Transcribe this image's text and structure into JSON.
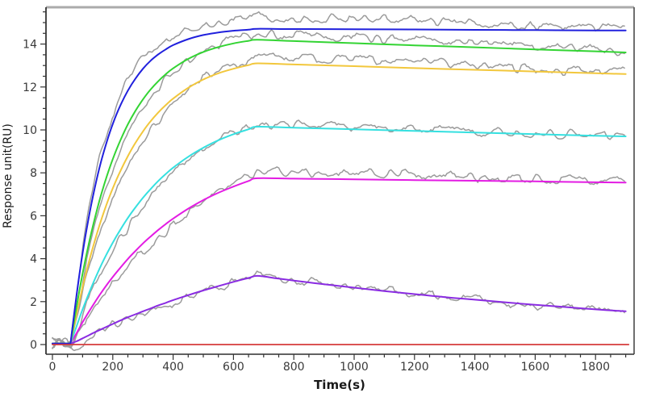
{
  "chart_data": {
    "type": "line",
    "title": "",
    "xlabel": "Time(s)",
    "ylabel": "Response unit(RU)",
    "xlim": [
      0,
      1928
    ],
    "ylim": [
      -0.45,
      15.7
    ],
    "grid": false,
    "legend": "none",
    "x_tick_labels": [
      "0",
      "200",
      "400",
      "600",
      "800",
      "1000",
      "1200",
      "1400",
      "1600",
      "1800"
    ],
    "x_major_tick_interval": 200,
    "x_minor_tick_interval": 50,
    "y_tick_labels": [
      "0",
      "2",
      "4",
      "6",
      "8",
      "10",
      "12",
      "14"
    ],
    "y_major_tick_interval": 2,
    "y_minor_tick_interval": 0.5,
    "phases": {
      "baseline_end_s": 60,
      "dissociation_start_s": 680,
      "end_s": 1900
    },
    "series": [
      {
        "name": "fit-curve-1-highest",
        "role": "fit",
        "color": "#2020dd",
        "points": [
          [
            0,
            0.05
          ],
          [
            60,
            0.05
          ],
          [
            80,
            2.31
          ],
          [
            100,
            4.26
          ],
          [
            120,
            5.9
          ],
          [
            140,
            7.29
          ],
          [
            160,
            8.46
          ],
          [
            180,
            9.44
          ],
          [
            200,
            10.28
          ],
          [
            225,
            11.14
          ],
          [
            250,
            11.83
          ],
          [
            275,
            12.39
          ],
          [
            300,
            12.85
          ],
          [
            325,
            13.22
          ],
          [
            350,
            13.51
          ],
          [
            375,
            13.75
          ],
          [
            400,
            13.95
          ],
          [
            450,
            14.23
          ],
          [
            500,
            14.42
          ],
          [
            550,
            14.54
          ],
          [
            600,
            14.62
          ],
          [
            650,
            14.67
          ],
          [
            680,
            14.71
          ],
          [
            800,
            14.7
          ],
          [
            1000,
            14.69
          ],
          [
            1200,
            14.68
          ],
          [
            1400,
            14.66
          ],
          [
            1600,
            14.65
          ],
          [
            1800,
            14.63
          ],
          [
            1900,
            14.63
          ]
        ]
      },
      {
        "name": "fit-curve-2",
        "role": "fit",
        "color": "#33d433",
        "points": [
          [
            0,
            0.05
          ],
          [
            60,
            0.05
          ],
          [
            80,
            1.76
          ],
          [
            100,
            3.31
          ],
          [
            120,
            4.67
          ],
          [
            140,
            5.86
          ],
          [
            160,
            6.91
          ],
          [
            180,
            7.83
          ],
          [
            200,
            8.64
          ],
          [
            225,
            9.51
          ],
          [
            250,
            10.26
          ],
          [
            275,
            10.89
          ],
          [
            300,
            11.42
          ],
          [
            325,
            11.88
          ],
          [
            350,
            12.26
          ],
          [
            375,
            12.59
          ],
          [
            400,
            12.87
          ],
          [
            450,
            13.31
          ],
          [
            500,
            13.63
          ],
          [
            550,
            13.86
          ],
          [
            600,
            14.03
          ],
          [
            650,
            14.15
          ],
          [
            680,
            14.2
          ],
          [
            800,
            14.14
          ],
          [
            1000,
            14.04
          ],
          [
            1200,
            13.94
          ],
          [
            1400,
            13.85
          ],
          [
            1600,
            13.75
          ],
          [
            1800,
            13.66
          ],
          [
            1900,
            13.61
          ]
        ]
      },
      {
        "name": "fit-curve-3",
        "role": "fit",
        "color": "#f2c73c",
        "points": [
          [
            0,
            0.05
          ],
          [
            60,
            0.05
          ],
          [
            80,
            1.41
          ],
          [
            100,
            2.68
          ],
          [
            120,
            3.81
          ],
          [
            140,
            4.82
          ],
          [
            160,
            5.73
          ],
          [
            180,
            6.55
          ],
          [
            200,
            7.28
          ],
          [
            225,
            8.08
          ],
          [
            250,
            8.78
          ],
          [
            275,
            9.4
          ],
          [
            300,
            9.93
          ],
          [
            325,
            10.4
          ],
          [
            350,
            10.8
          ],
          [
            375,
            11.15
          ],
          [
            400,
            11.46
          ],
          [
            450,
            11.96
          ],
          [
            500,
            12.35
          ],
          [
            550,
            12.64
          ],
          [
            600,
            12.85
          ],
          [
            650,
            13.02
          ],
          [
            680,
            13.1
          ],
          [
            800,
            13.05
          ],
          [
            1000,
            12.97
          ],
          [
            1200,
            12.88
          ],
          [
            1400,
            12.8
          ],
          [
            1600,
            12.72
          ],
          [
            1800,
            12.64
          ],
          [
            1900,
            12.6
          ]
        ]
      },
      {
        "name": "fit-curve-4",
        "role": "fit",
        "color": "#35e0e0",
        "points": [
          [
            0,
            0.05
          ],
          [
            60,
            0.05
          ],
          [
            80,
            0.85
          ],
          [
            100,
            1.64
          ],
          [
            120,
            2.36
          ],
          [
            140,
            3.03
          ],
          [
            160,
            3.65
          ],
          [
            180,
            4.22
          ],
          [
            200,
            4.75
          ],
          [
            225,
            5.35
          ],
          [
            250,
            5.9
          ],
          [
            275,
            6.39
          ],
          [
            300,
            6.84
          ],
          [
            325,
            7.24
          ],
          [
            350,
            7.61
          ],
          [
            375,
            7.94
          ],
          [
            400,
            8.24
          ],
          [
            450,
            8.75
          ],
          [
            500,
            9.17
          ],
          [
            550,
            9.52
          ],
          [
            600,
            9.8
          ],
          [
            650,
            10.03
          ],
          [
            680,
            10.15
          ],
          [
            800,
            10.1
          ],
          [
            1000,
            10.03
          ],
          [
            1200,
            9.95
          ],
          [
            1400,
            9.88
          ],
          [
            1600,
            9.8
          ],
          [
            1800,
            9.73
          ],
          [
            1900,
            9.7
          ]
        ]
      },
      {
        "name": "fit-curve-5",
        "role": "fit",
        "color": "#e31ce3",
        "points": [
          [
            0,
            0.05
          ],
          [
            60,
            0.05
          ],
          [
            80,
            0.53
          ],
          [
            100,
            1.04
          ],
          [
            120,
            1.51
          ],
          [
            140,
            1.96
          ],
          [
            160,
            2.38
          ],
          [
            180,
            2.78
          ],
          [
            200,
            3.15
          ],
          [
            225,
            3.58
          ],
          [
            250,
            3.99
          ],
          [
            275,
            4.36
          ],
          [
            300,
            4.71
          ],
          [
            325,
            5.03
          ],
          [
            350,
            5.33
          ],
          [
            375,
            5.61
          ],
          [
            400,
            5.87
          ],
          [
            450,
            6.33
          ],
          [
            500,
            6.73
          ],
          [
            550,
            7.07
          ],
          [
            600,
            7.36
          ],
          [
            650,
            7.62
          ],
          [
            680,
            7.75
          ],
          [
            800,
            7.73
          ],
          [
            1000,
            7.7
          ],
          [
            1200,
            7.66
          ],
          [
            1400,
            7.63
          ],
          [
            1600,
            7.6
          ],
          [
            1800,
            7.56
          ],
          [
            1900,
            7.55
          ]
        ]
      },
      {
        "name": "fit-curve-6-lowest",
        "role": "fit",
        "color": "#8a2be2",
        "points": [
          [
            0,
            0.05
          ],
          [
            60,
            0.05
          ],
          [
            80,
            0.15
          ],
          [
            100,
            0.29
          ],
          [
            120,
            0.43
          ],
          [
            140,
            0.57
          ],
          [
            160,
            0.7
          ],
          [
            180,
            0.83
          ],
          [
            200,
            0.96
          ],
          [
            225,
            1.12
          ],
          [
            250,
            1.27
          ],
          [
            275,
            1.41
          ],
          [
            300,
            1.55
          ],
          [
            325,
            1.68
          ],
          [
            350,
            1.82
          ],
          [
            375,
            1.94
          ],
          [
            400,
            2.07
          ],
          [
            450,
            2.3
          ],
          [
            500,
            2.52
          ],
          [
            550,
            2.72
          ],
          [
            600,
            2.92
          ],
          [
            650,
            3.1
          ],
          [
            680,
            3.2
          ],
          [
            750,
            3.07
          ],
          [
            800,
            2.98
          ],
          [
            900,
            2.81
          ],
          [
            1000,
            2.65
          ],
          [
            1100,
            2.49
          ],
          [
            1200,
            2.35
          ],
          [
            1300,
            2.21
          ],
          [
            1400,
            2.09
          ],
          [
            1500,
            1.97
          ],
          [
            1600,
            1.85
          ],
          [
            1700,
            1.75
          ],
          [
            1800,
            1.64
          ],
          [
            1900,
            1.55
          ]
        ]
      },
      {
        "name": "reference-zero-line",
        "role": "reference",
        "color": "#d63c3c",
        "points": [
          [
            0,
            0
          ],
          [
            1910,
            0
          ]
        ]
      }
    ],
    "measured": {
      "color": "#9b9b9b",
      "noise_amplitude_RU": 0.22,
      "baseline_noise_amplitude_RU": 0.27,
      "traces": [
        {
          "seed": 101,
          "rise_bias": 0.55,
          "rise_center": 300,
          "rise_width": 260,
          "plateau_bias": 0.5,
          "dip": 0.15
        },
        {
          "seed": 202,
          "rise_bias": -0.45,
          "rise_center": 260,
          "rise_width": 150,
          "plateau_bias": 0.25,
          "dip": 0.45
        },
        {
          "seed": 303,
          "rise_bias": -0.5,
          "rise_center": 260,
          "rise_width": 150,
          "plateau_bias": 0.3,
          "dip": 0.1
        },
        {
          "seed": 404,
          "rise_bias": -0.45,
          "rise_center": 270,
          "rise_width": 160,
          "plateau_bias": 0.1,
          "dip": 0.35
        },
        {
          "seed": 505,
          "rise_bias": -0.4,
          "rise_center": 300,
          "rise_width": 180,
          "plateau_bias": 0.28,
          "dip": 0.2
        },
        {
          "seed": 606,
          "rise_bias": -0.12,
          "rise_center": 400,
          "rise_width": 300,
          "plateau_bias": 0.05,
          "dip": 0.4
        }
      ]
    },
    "frame_colors": {
      "top": "#ababab",
      "right": "#4a4a4a",
      "left": "#1c1c1c",
      "bottom": "#2e2e2e"
    },
    "tick_color": "#333333",
    "tick_label_color": "#3a3a3a",
    "axis_title_color": "#1a1a1a"
  }
}
